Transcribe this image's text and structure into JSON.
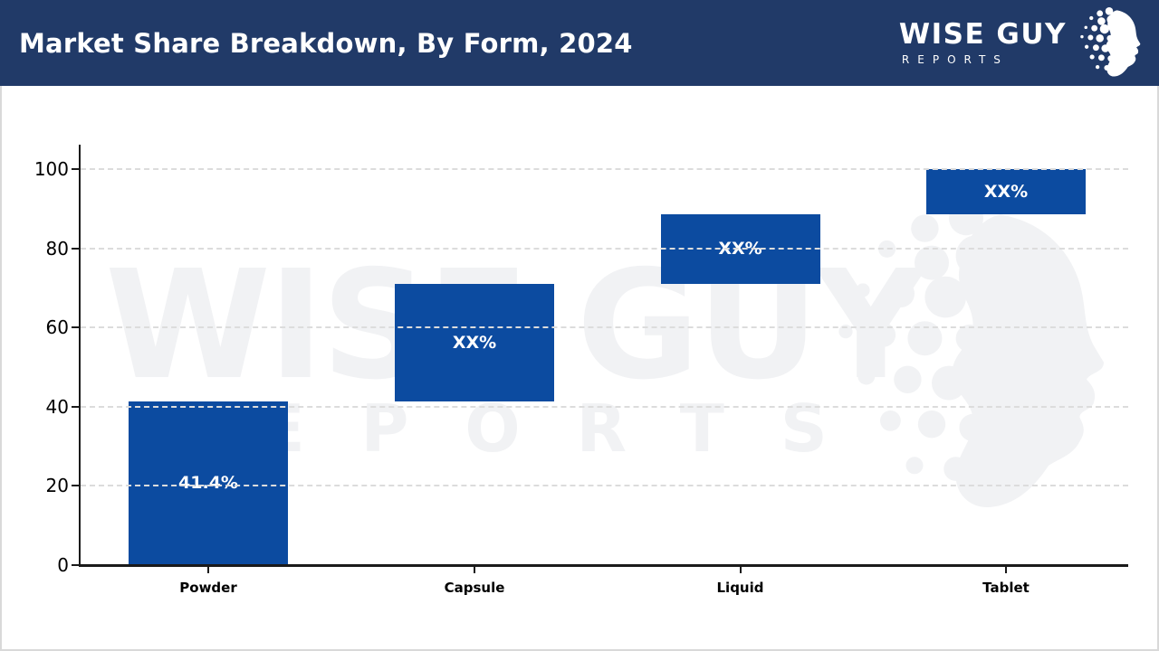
{
  "header": {
    "title": "Market Share Breakdown, By Form, 2024",
    "logo": {
      "name": "WISE GUY",
      "tagline": "REPORTS"
    }
  },
  "watermark": {
    "line1": "WISE GUY",
    "line2": "REPORTS"
  },
  "chart_data": {
    "type": "bar",
    "subtype": "waterfall",
    "title": "Market Share Breakdown, By Form, 2024",
    "xlabel": "",
    "ylabel": "",
    "categories": [
      "Powder",
      "Capsule",
      "Liquid",
      "Tablet"
    ],
    "segments": [
      {
        "category": "Powder",
        "label": "41.4%",
        "start": 0,
        "end": 41.4
      },
      {
        "category": "Capsule",
        "label": "XX%",
        "start": 41.4,
        "end": 71.1
      },
      {
        "category": "Liquid",
        "label": "XX%",
        "start": 71.1,
        "end": 88.6
      },
      {
        "category": "Tablet",
        "label": "XX%",
        "start": 88.6,
        "end": 100
      }
    ],
    "yticks": [
      0,
      20,
      40,
      60,
      80,
      100
    ],
    "ylim": [
      0,
      106
    ],
    "grid": "dashed-horizontal-above-bars",
    "legend": "none"
  },
  "colors": {
    "header_bg": "#213a68",
    "bar": "#0c4ba0",
    "grid": "#dcdcdc",
    "axis": "#1a1a1a",
    "watermark": "#f1f2f4",
    "border": "#d9d9d9"
  }
}
